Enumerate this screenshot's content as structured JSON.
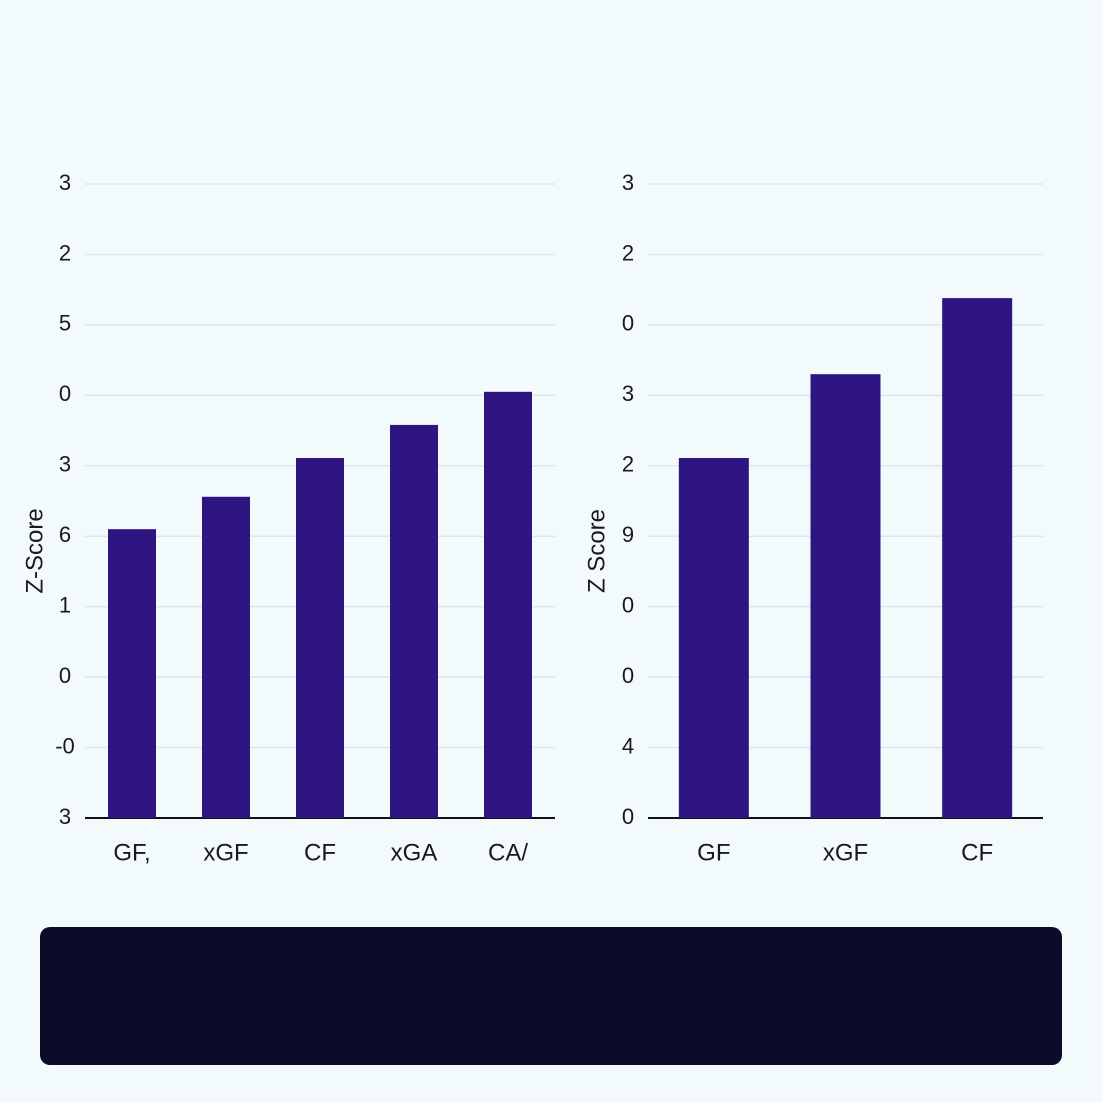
{
  "chart_data": [
    {
      "type": "bar",
      "ylabel": "Z-Score",
      "categories": [
        "GF,",
        "xGF",
        "CF",
        "xGA",
        "CA/"
      ],
      "values": [
        4.1,
        4.56,
        5.11,
        5.58,
        6.05
      ],
      "color": "#2e1582",
      "ylim": [
        0,
        9
      ],
      "yticks": [
        {
          "value": 0,
          "label": "3"
        },
        {
          "value": 1,
          "label": "-0"
        },
        {
          "value": 2,
          "label": "0"
        },
        {
          "value": 3,
          "label": "1"
        },
        {
          "value": 4,
          "label": "6"
        },
        {
          "value": 5,
          "label": "3"
        },
        {
          "value": 6,
          "label": "0"
        },
        {
          "value": 7,
          "label": "5"
        },
        {
          "value": 8,
          "label": "2"
        },
        {
          "value": 9,
          "label": "3"
        }
      ],
      "grid": true
    },
    {
      "type": "bar",
      "ylabel": "Z Score",
      "categories": [
        "GF",
        "xGF",
        "CF"
      ],
      "values": [
        5.11,
        6.3,
        7.38
      ],
      "color": "#2e1582",
      "ylim": [
        0,
        9
      ],
      "yticks": [
        0,
        {
          "value": 1,
          "label": "4"
        },
        {
          "value": 2,
          "label": "0"
        },
        {
          "value": 3,
          "label": "0"
        },
        {
          "value": 4,
          "label": "9"
        },
        {
          "value": 5,
          "label": "2"
        },
        {
          "value": 6,
          "label": "3"
        },
        {
          "value": 7,
          "label": "0"
        },
        {
          "value": 8,
          "label": "2"
        },
        {
          "value": 9,
          "label": "3"
        }
      ],
      "grid": true
    }
  ]
}
